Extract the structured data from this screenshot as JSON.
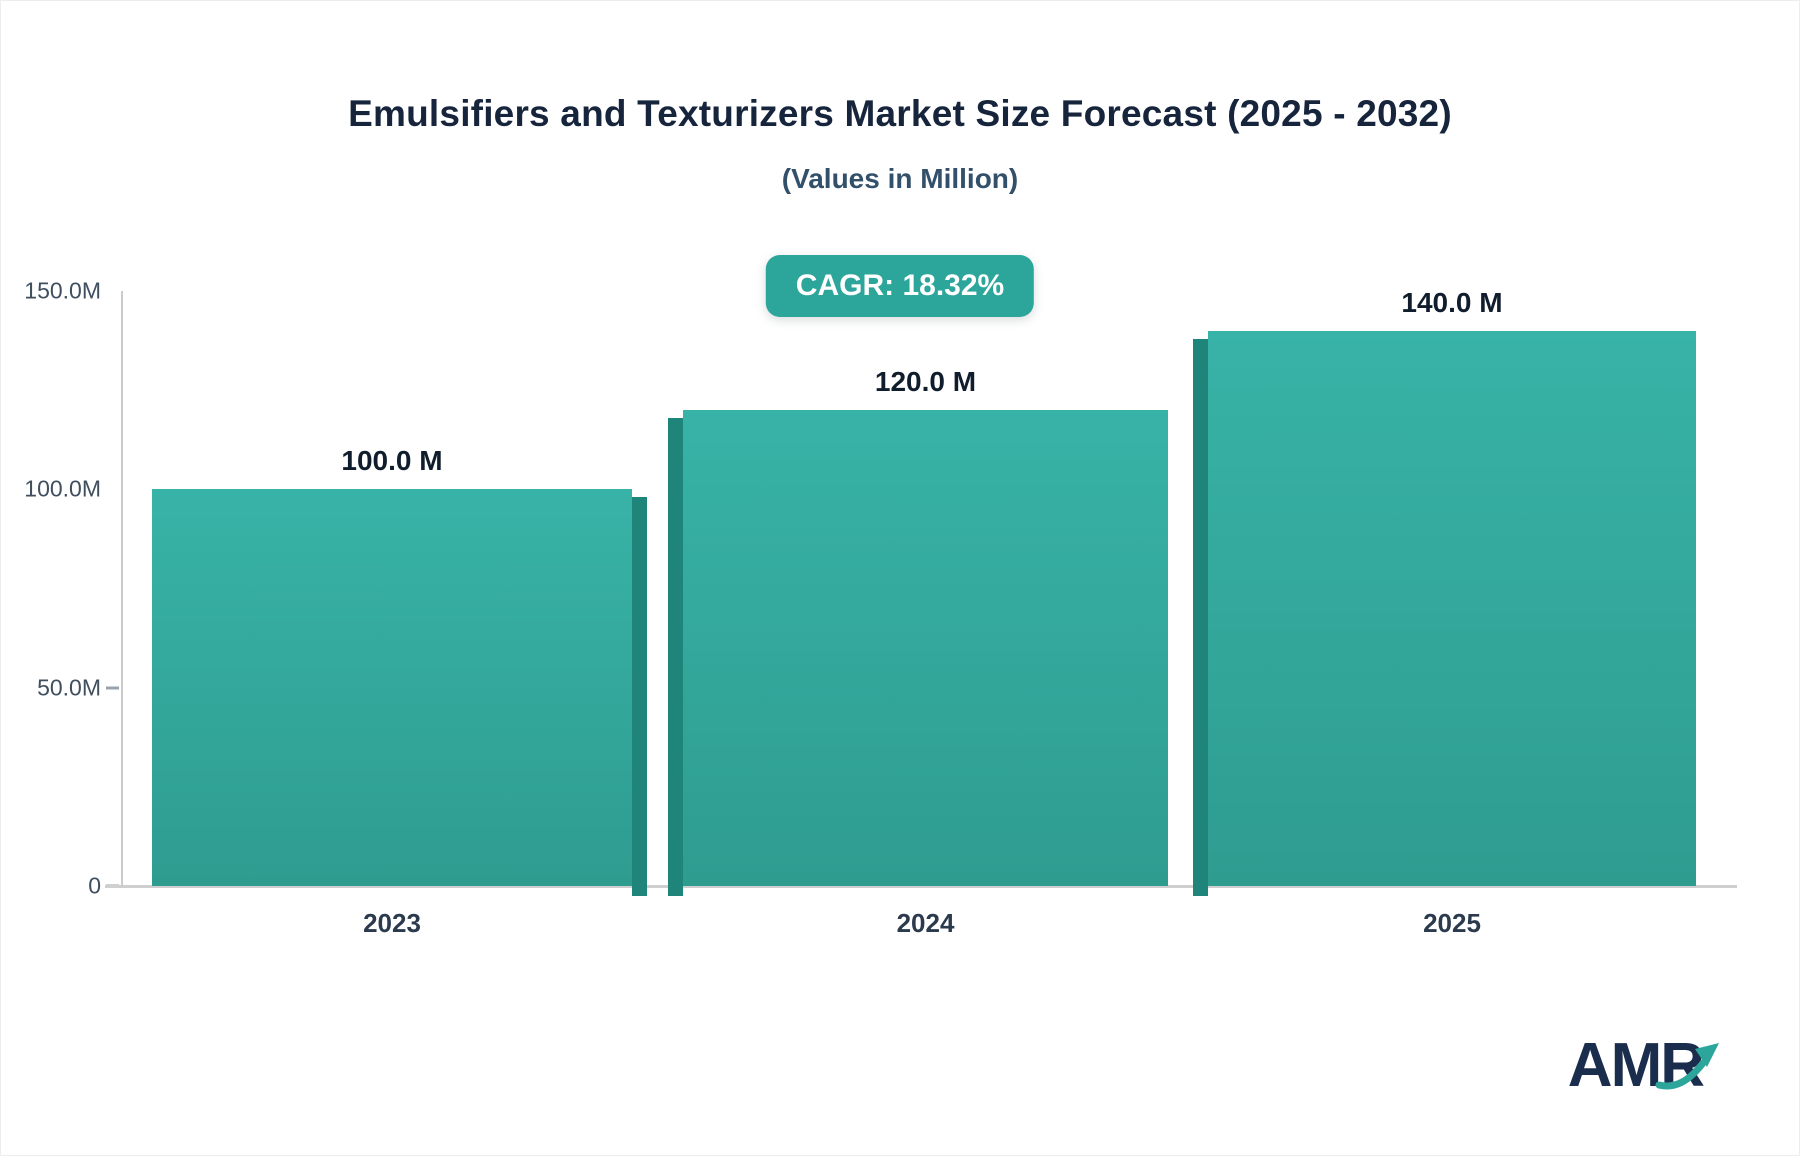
{
  "header": {
    "title": "Emulsifiers and Texturizers Market Size Forecast (2025 - 2032)",
    "subtitle": "(Values in Million)"
  },
  "cagr_badge": {
    "label": "CAGR: 18.32%"
  },
  "chart_data": {
    "type": "bar",
    "title": "Emulsifiers and Texturizers Market Size Forecast (2025 - 2032)",
    "subtitle": "(Values in Million)",
    "unit": "Million",
    "categories": [
      "2023",
      "2024",
      "2025"
    ],
    "values": [
      100.0,
      120.0,
      140.0
    ],
    "value_labels": [
      "100.0 M",
      "120.0 M",
      "140.0 M"
    ],
    "cagr_percent": 18.32,
    "xlabel": "",
    "ylabel": "",
    "ylim": [
      0,
      150
    ],
    "yticks": [
      "150.0M",
      "100.0M",
      "50.0M",
      "0"
    ],
    "grid": false,
    "legend": "none",
    "colors": {
      "bar_top": "#38b3a7",
      "bar_bottom": "#2f9c90",
      "bar_side": "#1f857b",
      "badge_bg": "#2ca69b",
      "title_text": "#16243c",
      "subtitle_text": "#33506b",
      "axis_line": "#cbcbcb",
      "logo_navy": "#1b2d4d",
      "logo_arrow": "#2ca69b"
    }
  },
  "logo": {
    "text": "AMR"
  }
}
